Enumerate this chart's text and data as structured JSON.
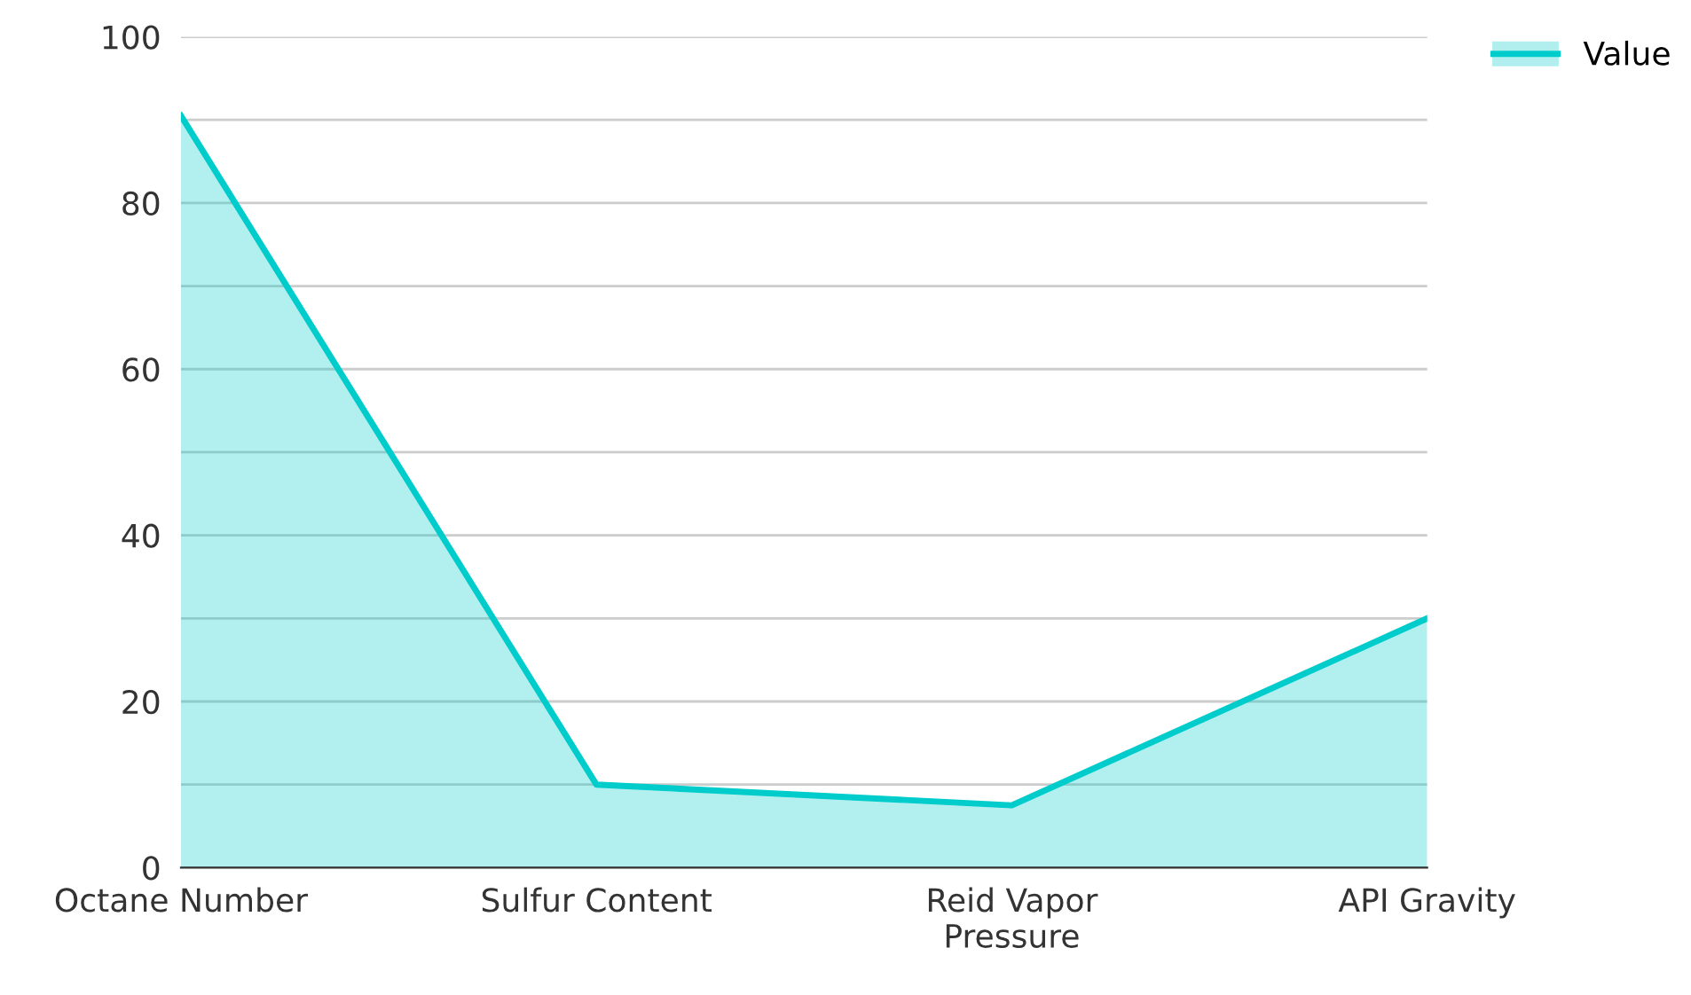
{
  "chart_data": {
    "type": "area",
    "categories": [
      "Octane Number",
      "Sulfur Content",
      "Reid Vapor Pressure",
      "API Gravity"
    ],
    "series": [
      {
        "name": "Value",
        "color": "#00cccc",
        "values": [
          90.5,
          10,
          7.5,
          30
        ]
      }
    ],
    "ylim": [
      0,
      100
    ],
    "yticks": [
      0,
      {
        "value": 10,
        "label": null
      },
      20,
      {
        "value": 30,
        "label": null
      },
      40,
      {
        "value": 50,
        "label": null
      },
      60,
      {
        "value": 70,
        "label": null
      },
      80,
      {
        "value": 90,
        "label": null
      },
      100
    ],
    "grid": "y",
    "legend": "top right"
  }
}
